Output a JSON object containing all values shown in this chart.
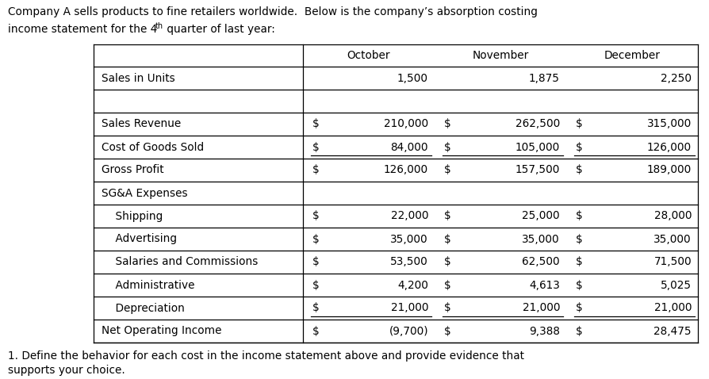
{
  "title_line1": "Company A sells products to fine retailers worldwide.  Below is the company’s absorption costing",
  "title_line2": "income statement for the 4",
  "title_superscript": "th",
  "title_line2_end": " quarter of last year:",
  "rows": [
    {
      "label": "Sales in Units",
      "indent": 0,
      "oct": "1,500",
      "nov": "1,875",
      "dec": "2,250",
      "dollar_oct": false,
      "dollar_nov": false,
      "dollar_dec": false,
      "ul_oct": false,
      "ul_nov": false,
      "ul_dec": false
    },
    {
      "label": "",
      "indent": 0,
      "oct": "",
      "nov": "",
      "dec": "",
      "dollar_oct": false,
      "dollar_nov": false,
      "dollar_dec": false,
      "ul_oct": false,
      "ul_nov": false,
      "ul_dec": false
    },
    {
      "label": "Sales Revenue",
      "indent": 0,
      "oct": "210,000",
      "nov": "262,500",
      "dec": "315,000",
      "dollar_oct": true,
      "dollar_nov": true,
      "dollar_dec": true,
      "ul_oct": false,
      "ul_nov": false,
      "ul_dec": false
    },
    {
      "label": "Cost of Goods Sold",
      "indent": 0,
      "oct": "84,000",
      "nov": "105,000",
      "dec": "126,000",
      "dollar_oct": true,
      "dollar_nov": true,
      "dollar_dec": true,
      "ul_oct": true,
      "ul_nov": true,
      "ul_dec": true
    },
    {
      "label": "Gross Profit",
      "indent": 0,
      "oct": "126,000",
      "nov": "157,500",
      "dec": "189,000",
      "dollar_oct": true,
      "dollar_nov": true,
      "dollar_dec": true,
      "ul_oct": false,
      "ul_nov": false,
      "ul_dec": false
    },
    {
      "label": "SG&A Expenses",
      "indent": 0,
      "oct": "",
      "nov": "",
      "dec": "",
      "dollar_oct": false,
      "dollar_nov": false,
      "dollar_dec": false,
      "ul_oct": false,
      "ul_nov": false,
      "ul_dec": false
    },
    {
      "label": "    Shipping",
      "indent": 1,
      "oct": "22,000",
      "nov": "25,000",
      "dec": "28,000",
      "dollar_oct": true,
      "dollar_nov": true,
      "dollar_dec": true,
      "ul_oct": false,
      "ul_nov": false,
      "ul_dec": false
    },
    {
      "label": "    Advertising",
      "indent": 1,
      "oct": "35,000",
      "nov": "35,000",
      "dec": "35,000",
      "dollar_oct": true,
      "dollar_nov": true,
      "dollar_dec": true,
      "ul_oct": false,
      "ul_nov": false,
      "ul_dec": false
    },
    {
      "label": "    Salaries and Commissions",
      "indent": 1,
      "oct": "53,500",
      "nov": "62,500",
      "dec": "71,500",
      "dollar_oct": true,
      "dollar_nov": true,
      "dollar_dec": true,
      "ul_oct": false,
      "ul_nov": false,
      "ul_dec": false
    },
    {
      "label": "    Administrative",
      "indent": 1,
      "oct": "4,200",
      "nov": "4,613",
      "dec": "5,025",
      "dollar_oct": true,
      "dollar_nov": true,
      "dollar_dec": true,
      "ul_oct": false,
      "ul_nov": false,
      "ul_dec": false
    },
    {
      "label": "    Depreciation",
      "indent": 1,
      "oct": "21,000",
      "nov": "21,000",
      "dec": "21,000",
      "dollar_oct": true,
      "dollar_nov": true,
      "dollar_dec": true,
      "ul_oct": true,
      "ul_nov": true,
      "ul_dec": true
    },
    {
      "label": "Net Operating Income",
      "indent": 0,
      "oct": "(9,700)",
      "nov": "9,388",
      "dec": "28,475",
      "dollar_oct": true,
      "dollar_nov": true,
      "dollar_dec": true,
      "ul_oct": false,
      "ul_nov": false,
      "ul_dec": false
    }
  ],
  "footnote_line1": "1. Define the behavior for each cost in the income statement above and provide evidence that",
  "footnote_line2": "supports your choice.",
  "bg_color": "#ffffff",
  "text_color": "#000000",
  "font_size": 9.8
}
